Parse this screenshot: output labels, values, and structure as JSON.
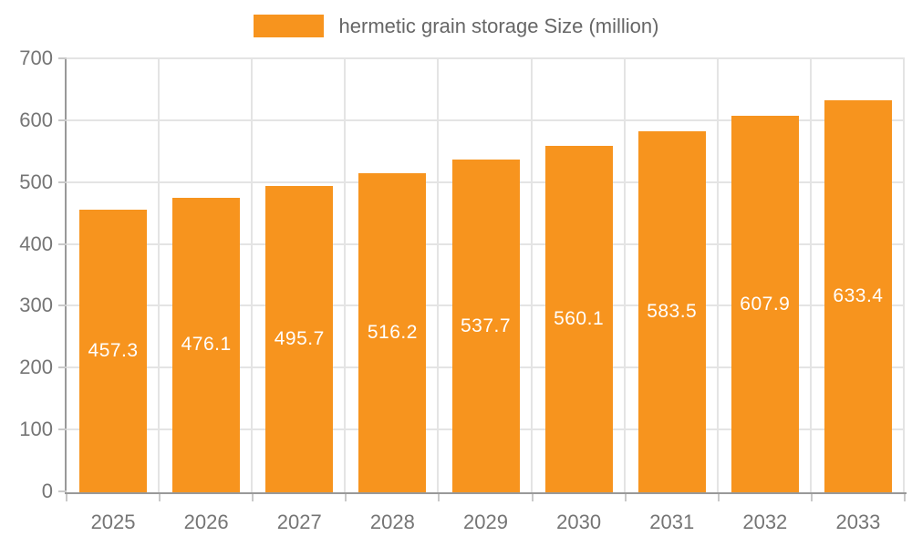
{
  "chart_data": {
    "type": "bar",
    "title": "",
    "legend": "hermetic grain storage Size (million)",
    "legend_position": "top",
    "categories": [
      "2025",
      "2026",
      "2027",
      "2028",
      "2029",
      "2030",
      "2031",
      "2032",
      "2033"
    ],
    "series": [
      {
        "name": "hermetic grain storage Size (million)",
        "values": [
          457.3,
          476.1,
          495.7,
          516.2,
          537.7,
          560.1,
          583.5,
          607.9,
          633.4
        ]
      }
    ],
    "value_labels": [
      "457.3",
      "476.1",
      "495.7",
      "516.2",
      "537.7",
      "560.1",
      "583.5",
      "607.9",
      "633.4"
    ],
    "value_label_position": "inside-center",
    "xlabel": "",
    "ylabel": "",
    "ylim": [
      0,
      700
    ],
    "y_ticks": [
      0,
      100,
      200,
      300,
      400,
      500,
      600,
      700
    ],
    "grid": true,
    "colors": {
      "bar": "#F7941E",
      "grid": "#E4E4E4",
      "axis": "#999999",
      "tick": "#C9C9C9",
      "tick_label": "#757575",
      "legend_text": "#666666",
      "value_label": "#FFFFFF",
      "background": "#FFFFFF"
    }
  }
}
